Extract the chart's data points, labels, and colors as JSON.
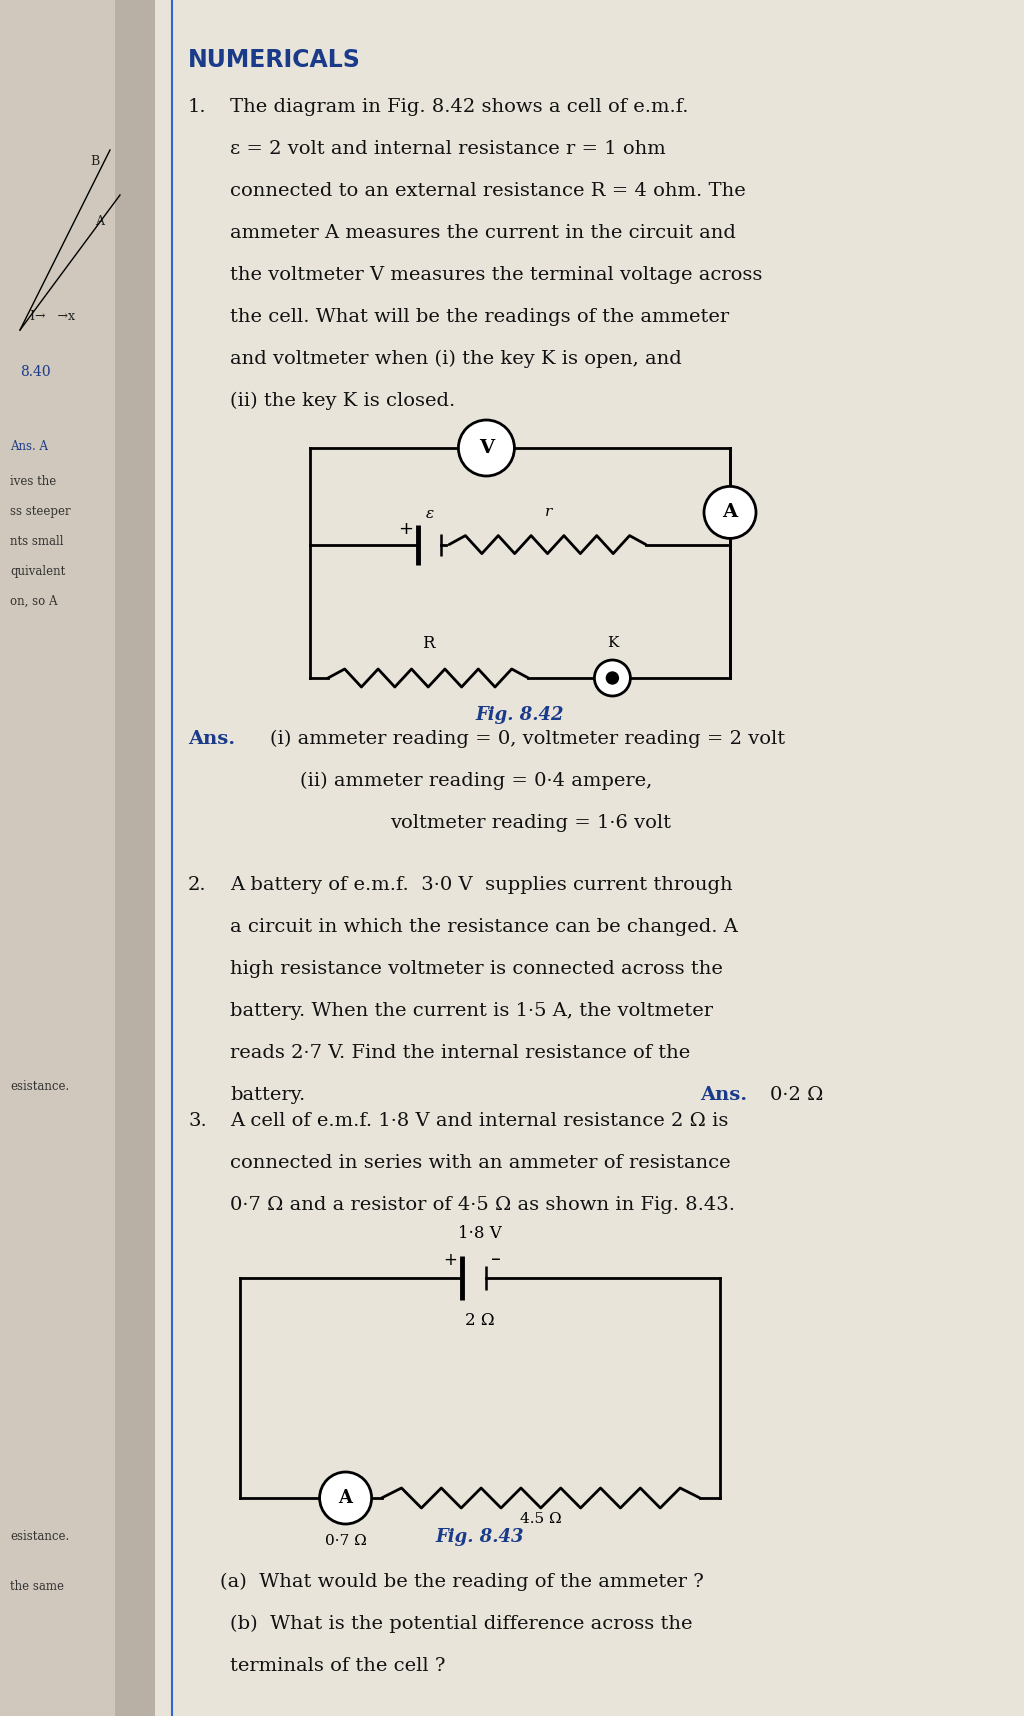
{
  "bg_left": "#c8c0b0",
  "bg_page": "#ddd8cc",
  "page_right_bg": "#e8e4da",
  "title": "NUMERICALS",
  "title_color": "#1a3a8a",
  "text_color": "#111111",
  "ans_color": "#1a3a8a",
  "fig_caption_color": "#1a3a8a",
  "spine_color": "#b0a898",
  "q1_lines": [
    "The diagram in Fig. 8.42 shows a cell of e.m.f.",
    "ε = 2 volt and internal resistance r = 1 ohm",
    "connected to an external resistance R = 4 ohm. The",
    "ammeter A measures the current in the circuit and",
    "the voltmeter V measures the terminal voltage across",
    "the cell. What will be the readings of the ammeter",
    "and voltmeter when (i) the key K is open, and",
    "(ii) the key K is closed."
  ],
  "q2_lines": [
    "A battery of e.m.f.  3·0 V  supplies current through",
    "a circuit in which the resistance can be changed. A",
    "high resistance voltmeter is connected across the",
    "battery. When the current is 1·5 A, the voltmeter",
    "reads 2·7 V. Find the internal resistance of the",
    "battery."
  ],
  "q3_lines": [
    "A cell of e.m.f. 1·8 V and internal resistance 2 Ω is",
    "connected in series with an ammeter of resistance",
    "0·7 Ω and a resistor of 4·5 Ω as shown in Fig. 8.43."
  ],
  "q3_sub_lines": [
    "(a)  What would be the reading of the ammeter ?",
    "(b)  What is the potential difference across the",
    "terminals of the cell ?"
  ],
  "fig842_caption": "Fig. 8.42",
  "fig843_caption": "Fig. 8.43",
  "left_margin_texts": [
    "B",
    "A",
    "8.40",
    "Ans. A",
    "ives the",
    "ss steeper",
    "nts small",
    "quivalent",
    "on, so A",
    "esistance.",
    "esistance.",
    "the same"
  ]
}
